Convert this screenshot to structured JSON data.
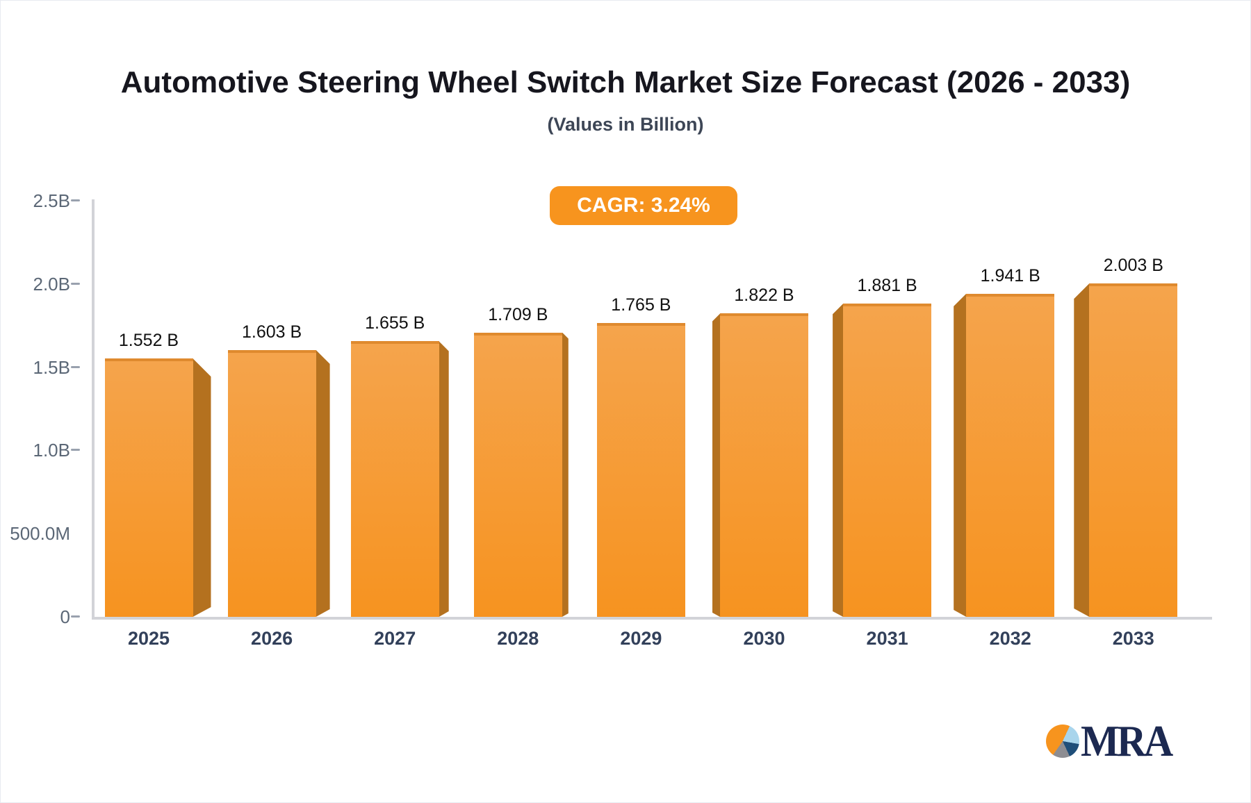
{
  "header": {
    "title": "Automotive Steering Wheel Switch Market Size Forecast (2026 - 2033)",
    "subtitle": "(Values in Billion)",
    "cagr_badge": "CAGR: 3.24%"
  },
  "chart_data": {
    "type": "bar",
    "title": "Automotive Steering Wheel Switch Market Size Forecast (2026 - 2033)",
    "subtitle": "(Values in Billion)",
    "annotation": "CAGR: 3.24%",
    "categories": [
      "2025",
      "2026",
      "2027",
      "2028",
      "2029",
      "2030",
      "2031",
      "2032",
      "2033"
    ],
    "values": [
      1.552,
      1.603,
      1.655,
      1.709,
      1.765,
      1.822,
      1.881,
      1.941,
      2.003
    ],
    "value_labels": [
      "1.552 B",
      "1.603 B",
      "1.655 B",
      "1.709 B",
      "1.765 B",
      "1.822 B",
      "1.881 B",
      "1.941 B",
      "2.003 B"
    ],
    "ylim": [
      0,
      2.5
    ],
    "y_ticks": [
      {
        "label": "2.5B",
        "value": 2.5,
        "dash": true
      },
      {
        "label": "2.0B",
        "value": 2.0,
        "dash": true
      },
      {
        "label": "1.5B",
        "value": 1.5,
        "dash": true
      },
      {
        "label": "1.0B",
        "value": 1.0,
        "dash": true
      },
      {
        "label": "500.0M",
        "value": 0.5,
        "dash": false
      },
      {
        "label": "0",
        "value": 0.0,
        "dash": true
      }
    ],
    "grid": false,
    "legend": false,
    "bar_style": "3d-perspective-orange"
  },
  "branding": {
    "logo_text": "MRA"
  },
  "colors": {
    "accent": "#F7941E",
    "title": "#16161E",
    "subtitle": "#3D4656",
    "value_label": "#111111",
    "year_label": "#32405A",
    "tick_label": "#5B6776",
    "axis_line": "#D2D3D8",
    "tick_dash": "#99A1AE",
    "bar_face_top": "#F5A44C",
    "bar_face_bottom": "#F69320",
    "bar_top_edge": "#DF8A2E",
    "bar_side": "#B4711F",
    "logo_navy": "#1C2951",
    "logo_pie_orange": "#F7941E",
    "logo_pie_lightblue": "#A9D5EC",
    "logo_pie_navy": "#1F4E79",
    "logo_pie_gray": "#8D8D92"
  }
}
